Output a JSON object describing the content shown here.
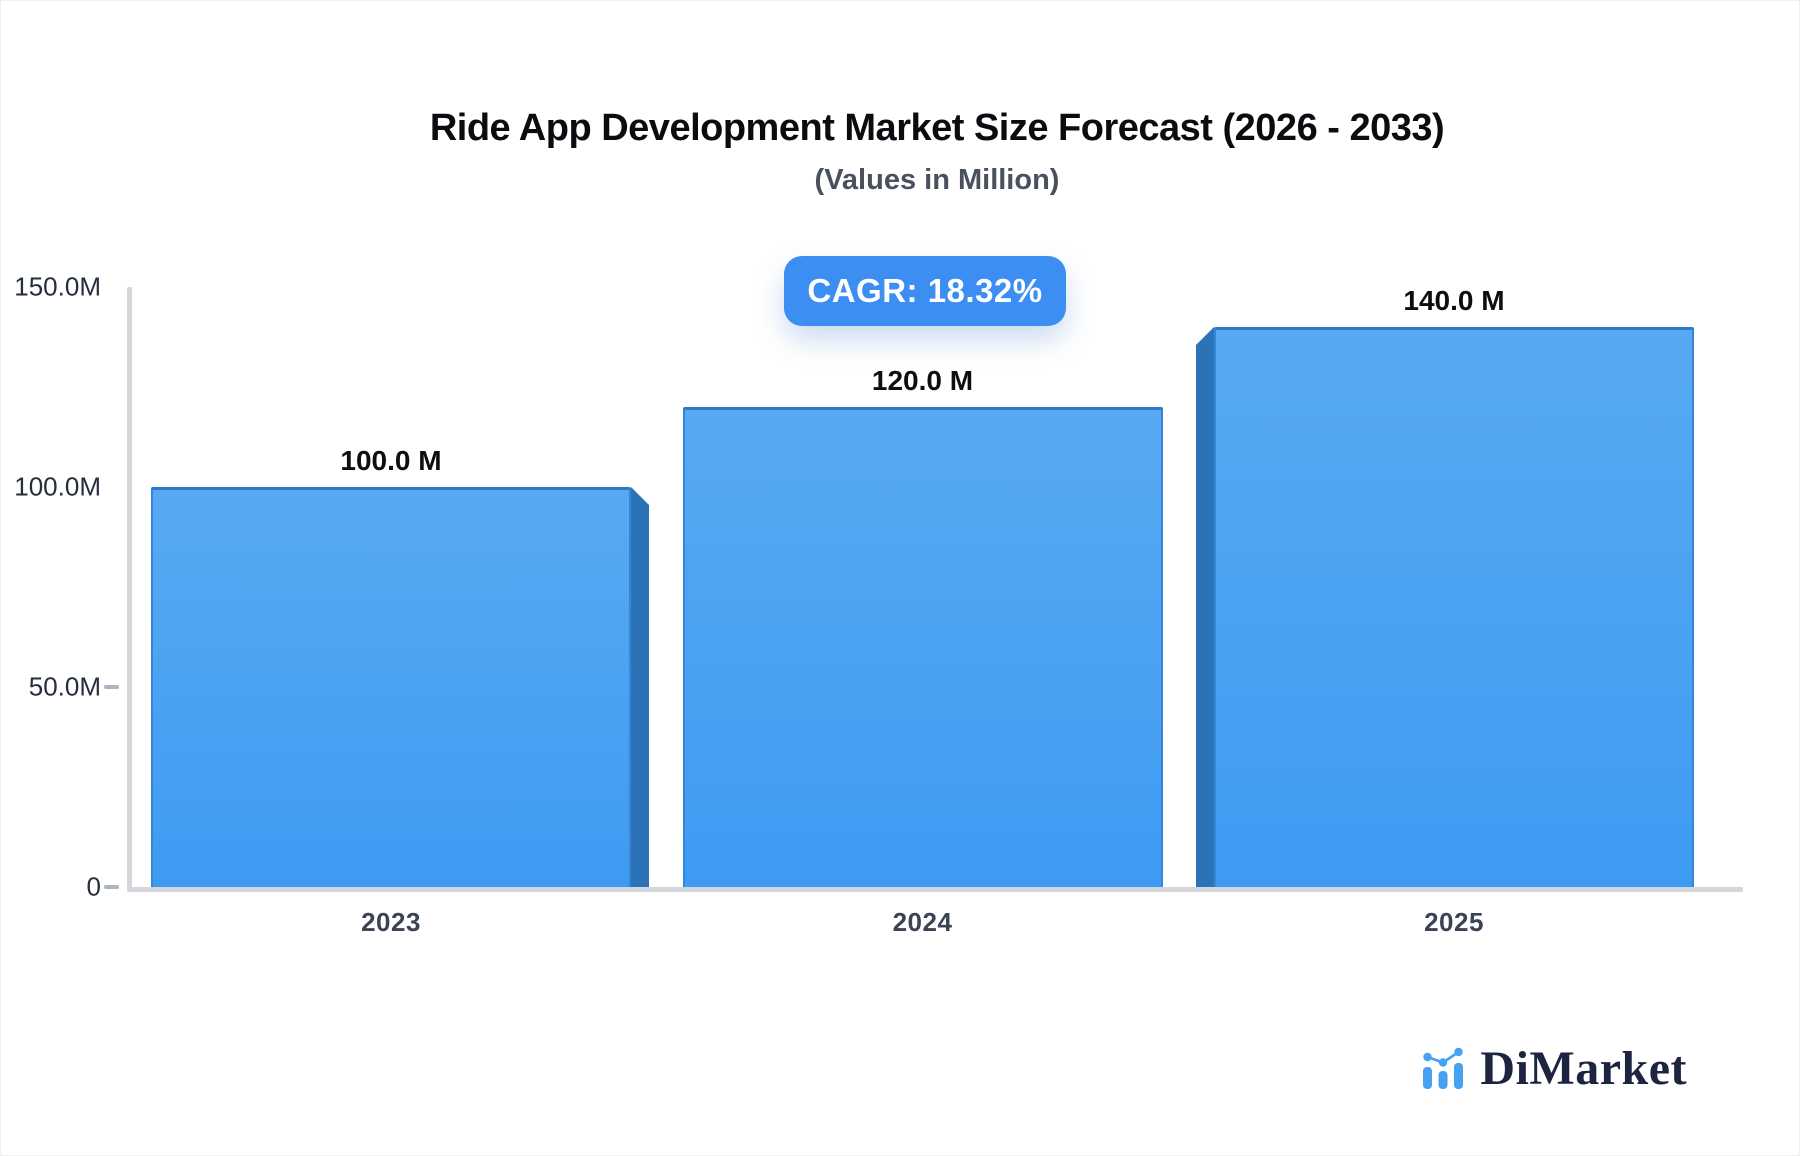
{
  "chart_data": {
    "type": "bar",
    "title": "Ride App Development Market Size Forecast (2026 - 2033)",
    "subtitle": "(Values in Million)",
    "annotation": "CAGR: 18.32%",
    "categories": [
      "2023",
      "2024",
      "2025"
    ],
    "values": [
      100,
      120,
      140
    ],
    "value_labels": [
      "100.0 M",
      "120.0 M",
      "140.0 M"
    ],
    "xlabel": "",
    "ylabel": "",
    "ylim": [
      0,
      150
    ],
    "grid": false,
    "legend": false,
    "yticks": [
      {
        "label": "150.0M",
        "value": 150,
        "dash": false
      },
      {
        "label": "100.0M",
        "value": 100,
        "dash": false
      },
      {
        "label": "50.0M",
        "value": 50,
        "dash": true
      },
      {
        "label": "0",
        "value": 0,
        "dash": true
      }
    ]
  },
  "branding": {
    "name": "DiMarket",
    "icon": "bar-chart-logo-icon"
  },
  "colors": {
    "bar_fill_top": "#58a9f2",
    "bar_fill_bottom": "#3e9bf3",
    "bar_edge": "#2d7ac6",
    "bar_side": "#3487d8",
    "bar_bevel": "#2b72b7",
    "badge_bg": "#3d8ef2",
    "axis_line": "#d3d6db",
    "tick_dash": "#aeb4bd",
    "logo_blue": "#47a1f2",
    "logo_navy": "#1c2440"
  }
}
